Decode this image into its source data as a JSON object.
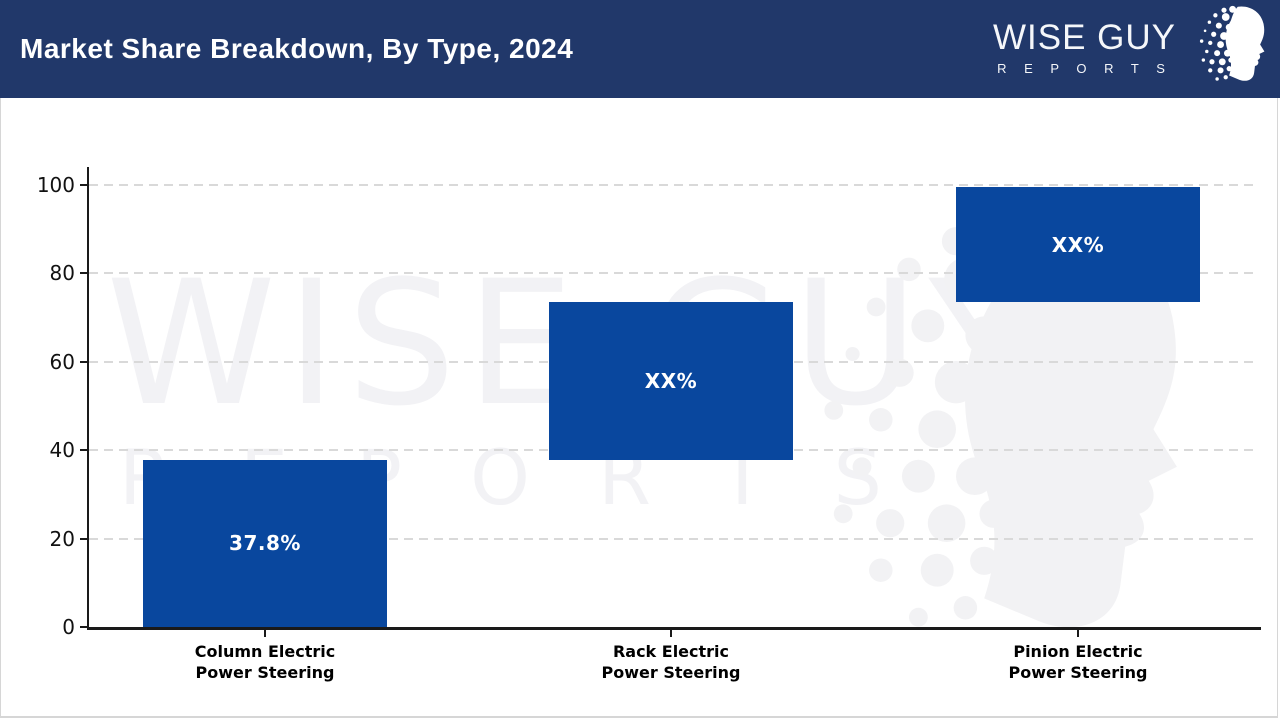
{
  "header": {
    "title": "Market Share Breakdown, By Type, 2024",
    "logo": {
      "wordmark": "WISE GUY",
      "subtitle": "R E P O R T S",
      "face_icon": "dotted-head-profile-icon"
    }
  },
  "watermark": {
    "line1": "WISE GUY",
    "line2": "R E P O R T S"
  },
  "colors": {
    "header_bg": "#21386a",
    "header_text": "#ffffff",
    "bar": "#09479e",
    "bar_label": "#ffffff",
    "grid": "#d9d9d9",
    "axis": "#1a1a1a",
    "tick_text": "#111111",
    "watermark": "#f2f2f5"
  },
  "chart_data": {
    "type": "bar",
    "subtype": "floating-waterfall-bars",
    "title": "Market Share Breakdown, By Type, 2024",
    "categories": [
      [
        "Column Electric",
        "Power Steering"
      ],
      [
        "Rack Electric",
        "Power Steering"
      ],
      [
        "Pinion Electric",
        "Power Steering"
      ]
    ],
    "segments": [
      {
        "category": "Column Electric Power Steering",
        "start": 0,
        "end": 37.8,
        "label": "37.8%"
      },
      {
        "category": "Rack Electric Power Steering",
        "start": 37.8,
        "end": 73.5,
        "label": "XX%"
      },
      {
        "category": "Pinion Electric Power Steering",
        "start": 73.5,
        "end": 99.5,
        "label": "XX%"
      }
    ],
    "xlabel": "",
    "ylabel": "",
    "ylim": [
      0,
      104
    ],
    "yticks": [
      0,
      20,
      40,
      60,
      80,
      100
    ],
    "grid": "dashed-horizontal",
    "legend": "none",
    "bar_value_text_position": "center"
  }
}
